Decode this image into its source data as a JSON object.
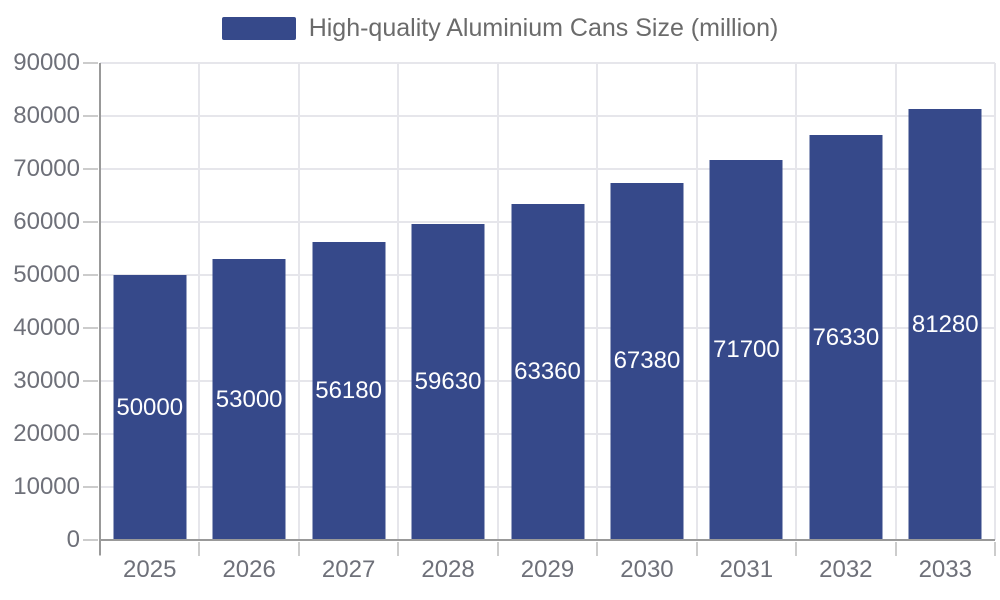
{
  "chart_data": {
    "type": "bar",
    "title": "High-quality Aluminium Cans Size (million)",
    "categories": [
      "2025",
      "2026",
      "2027",
      "2028",
      "2029",
      "2030",
      "2031",
      "2032",
      "2033"
    ],
    "series": [
      {
        "name": "High-quality Aluminium Cans Size (million)",
        "values": [
          50000,
          53000,
          56180,
          59630,
          63360,
          67380,
          71700,
          76330,
          81280
        ]
      }
    ],
    "xlabel": "",
    "ylabel": "",
    "ylim": [
      0,
      90000
    ],
    "ytick_step": 10000,
    "yticks": [
      "0",
      "10000",
      "20000",
      "30000",
      "40000",
      "50000",
      "60000",
      "70000",
      "80000",
      "90000"
    ],
    "grid": true,
    "legend_position": "top-center",
    "bar_label_position": "inside-center",
    "colors": {
      "bar": "#36498a",
      "bar_label": "#ffffff",
      "axis_label": "#6e7079",
      "legend_label": "#6b6b6b",
      "axis_line": "#999999",
      "gridline": "#e6e6eb",
      "tick": "#cccccc",
      "background": "#ffffff"
    }
  }
}
